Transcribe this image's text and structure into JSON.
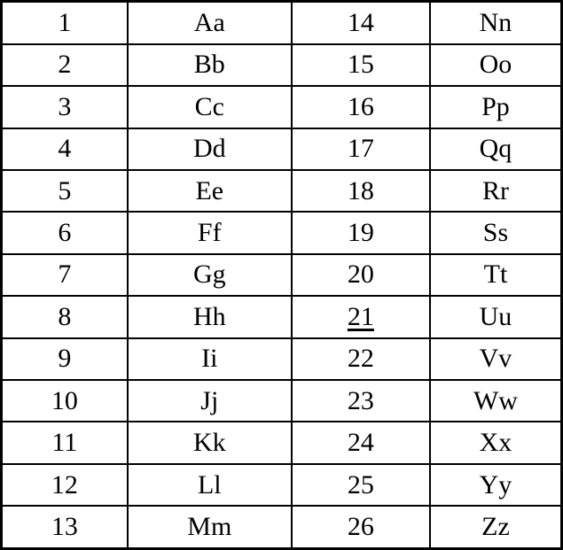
{
  "meta": {
    "background_color": "#ffffff",
    "border_color": "#000000",
    "text_color": "#000000"
  },
  "table": {
    "columns": [
      "index-left",
      "letters-left",
      "index-right",
      "letters-right"
    ],
    "rows": [
      {
        "cells": [
          {
            "text": "1"
          },
          {
            "text": "Aa"
          },
          {
            "text": "14"
          },
          {
            "text": "Nn"
          }
        ]
      },
      {
        "cells": [
          {
            "text": "2"
          },
          {
            "text": "Bb"
          },
          {
            "text": "15"
          },
          {
            "text": "Oo"
          }
        ]
      },
      {
        "cells": [
          {
            "text": "3"
          },
          {
            "text": "Cc"
          },
          {
            "text": "16"
          },
          {
            "text": "Pp"
          }
        ]
      },
      {
        "cells": [
          {
            "text": "4"
          },
          {
            "text": "Dd"
          },
          {
            "text": "17"
          },
          {
            "text": "Qq"
          }
        ]
      },
      {
        "cells": [
          {
            "text": "5"
          },
          {
            "text": "Ee"
          },
          {
            "text": "18"
          },
          {
            "text": "Rr"
          }
        ]
      },
      {
        "cells": [
          {
            "text": "6"
          },
          {
            "text": "Ff"
          },
          {
            "text": "19"
          },
          {
            "text": "Ss"
          }
        ]
      },
      {
        "cells": [
          {
            "text": "7"
          },
          {
            "text": "Gg"
          },
          {
            "text": "20"
          },
          {
            "text": "Tt"
          }
        ]
      },
      {
        "cells": [
          {
            "text": "8"
          },
          {
            "text": "Hh"
          },
          {
            "text": "21",
            "underline": true
          },
          {
            "text": "Uu"
          }
        ]
      },
      {
        "cells": [
          {
            "text": "9"
          },
          {
            "text": "Ii"
          },
          {
            "text": "22"
          },
          {
            "text": "Vv"
          }
        ]
      },
      {
        "cells": [
          {
            "text": "10"
          },
          {
            "text": "Jj"
          },
          {
            "text": "23"
          },
          {
            "text": "Ww"
          }
        ]
      },
      {
        "cells": [
          {
            "text": "11"
          },
          {
            "text": "Kk"
          },
          {
            "text": "24"
          },
          {
            "text": "Xx"
          }
        ]
      },
      {
        "cells": [
          {
            "text": "12"
          },
          {
            "text": "Ll"
          },
          {
            "text": "25"
          },
          {
            "text": "Yy"
          }
        ]
      },
      {
        "cells": [
          {
            "text": "13"
          },
          {
            "text": "Mm"
          },
          {
            "text": "26"
          },
          {
            "text": "Zz"
          }
        ]
      }
    ]
  }
}
